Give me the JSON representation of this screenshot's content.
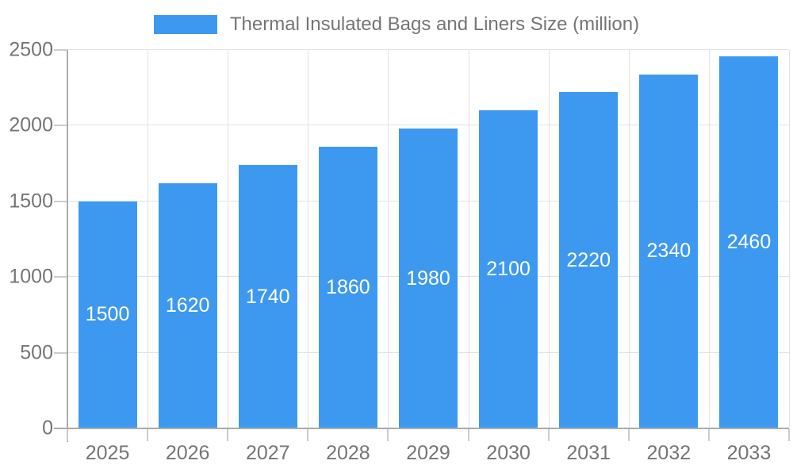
{
  "legend": {
    "label": "Thermal Insulated Bags and Liners Size (million)"
  },
  "chart_data": {
    "type": "bar",
    "title": "Thermal Insulated Bags and Liners Size (million)",
    "categories": [
      "2025",
      "2026",
      "2027",
      "2028",
      "2029",
      "2030",
      "2031",
      "2032",
      "2033"
    ],
    "values": [
      1500,
      1620,
      1740,
      1860,
      1980,
      2100,
      2220,
      2340,
      2460
    ],
    "bar_value_labels_shown": true,
    "xlabel": "",
    "ylabel": "",
    "ylim": [
      0,
      2500
    ],
    "y_ticks": [
      0,
      500,
      1000,
      1500,
      2000,
      2500
    ],
    "grid": "horizontal and vertical light gridlines",
    "legend_position": "top-center",
    "colors": {
      "bar": "#3d99f0",
      "bar_label": "#ffffff",
      "text": "#757575",
      "axis_line": "#ababab",
      "tick": "#cccccc",
      "grid": "#e2e2e2",
      "background": "#ffffff"
    }
  }
}
